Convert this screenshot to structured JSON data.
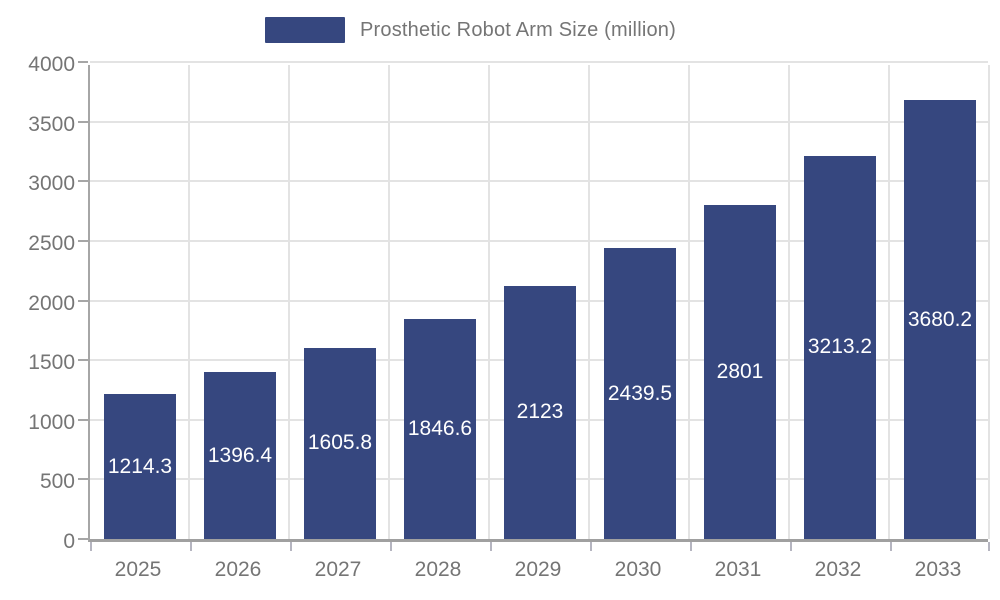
{
  "legend": {
    "series_label": "Prosthetic Robot Arm Size (million)"
  },
  "chart_data": {
    "type": "bar",
    "title": "Prosthetic Robot Arm Size (million)",
    "categories": [
      "2025",
      "2026",
      "2027",
      "2028",
      "2029",
      "2030",
      "2031",
      "2032",
      "2033"
    ],
    "values": [
      1214.3,
      1396.4,
      1605.8,
      1846.6,
      2123,
      2439.5,
      2801,
      3213.2,
      3680.2
    ],
    "data_labels": [
      "1214.3",
      "1396.4",
      "1605.8",
      "1846.6",
      "2123",
      "2439.5",
      "2801",
      "3213.2",
      "3680.2"
    ],
    "xlabel": "",
    "ylabel": "",
    "ylim": [
      0,
      4000
    ],
    "ytick_step": 500,
    "grid": true,
    "legend_position": "top",
    "colors": {
      "bar": "#36477f",
      "value_label": "#ffffff",
      "axis_line": "#a6a6a6",
      "gridline": "#e3e3e3",
      "axis_text": "#757575"
    }
  }
}
